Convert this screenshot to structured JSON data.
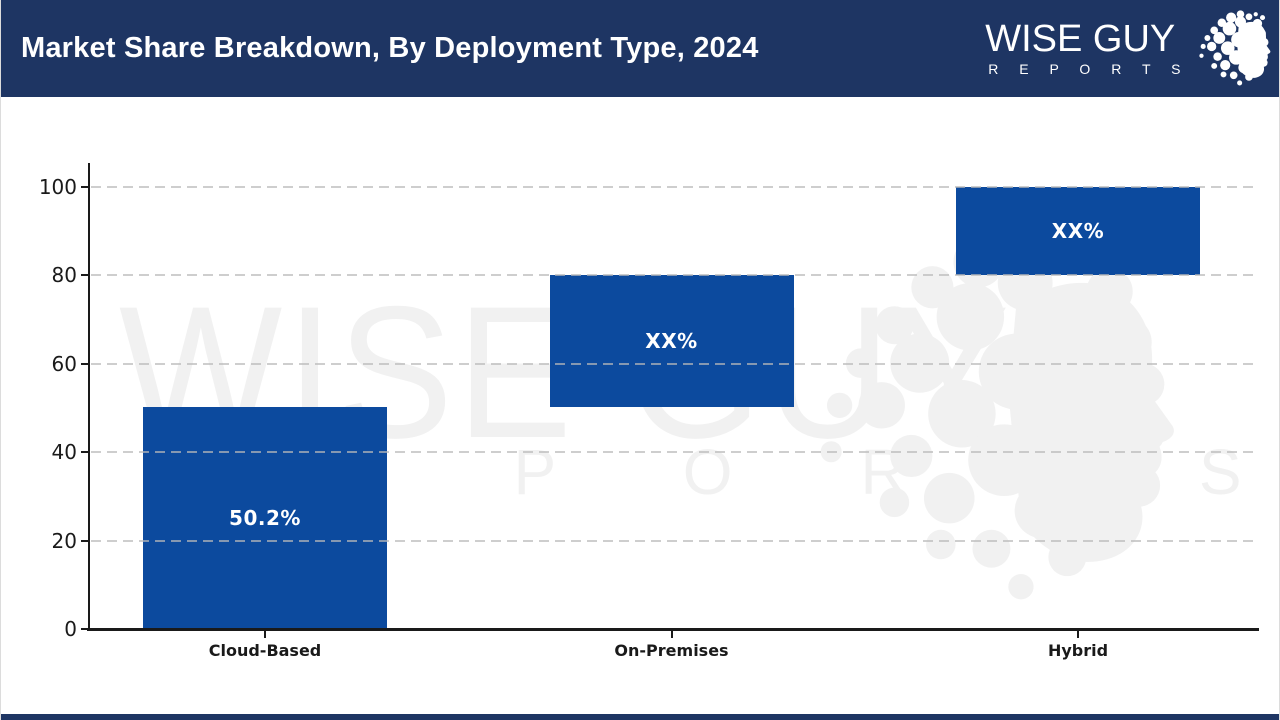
{
  "header": {
    "title": "Market Share Breakdown, By Deployment Type, 2024",
    "background_color": "#1e3563",
    "logo": {
      "line1": "WISE GUY",
      "line2": "R E P O R T S",
      "head_icon": "dotted-head-profile"
    }
  },
  "watermark": {
    "line1": "WISE GUY",
    "line2": "R E P O R T S",
    "head_icon": "dotted-head-profile",
    "color": "#f1f1f1"
  },
  "chart_data": {
    "type": "bar",
    "subtype": "waterfall",
    "title": "Market Share Breakdown, By Deployment Type, 2024",
    "categories": [
      "Cloud-Based",
      "On-Premises",
      "Hybrid"
    ],
    "bars": [
      {
        "category": "Cloud-Based",
        "start": 0,
        "end": 50.2,
        "label": "50.2%"
      },
      {
        "category": "On-Premises",
        "start": 50.2,
        "end": 80,
        "label": "XX%"
      },
      {
        "category": "Hybrid",
        "start": 80,
        "end": 100,
        "label": "XX%"
      }
    ],
    "yticks": [
      "0",
      "20",
      "40",
      "60",
      "80",
      "100"
    ],
    "ytick_values": [
      0,
      20,
      40,
      60,
      80,
      100
    ],
    "ylim": [
      0,
      105
    ],
    "xlabel": "",
    "ylabel": "",
    "grid": "dashed-horizontal",
    "legend": "none",
    "bar_color": "#0c4a9e",
    "bar_label_color": "#ffffff"
  },
  "footer": {
    "bar_color": "#1e3563"
  }
}
